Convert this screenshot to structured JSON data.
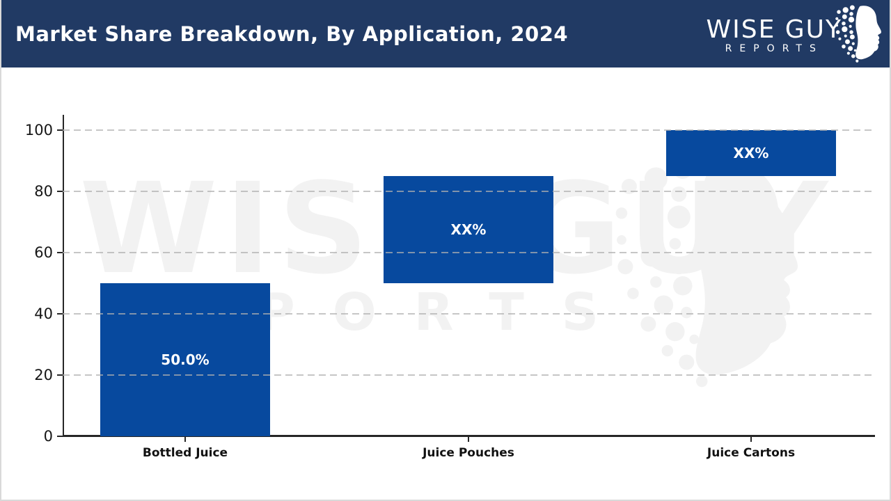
{
  "header": {
    "title": "Market Share Breakdown, By Application, 2024",
    "brand": {
      "name": "WISE GUY",
      "tagline": "REPORTS"
    }
  },
  "watermark": {
    "name": "WISE GUY",
    "tagline": "REPORTS"
  },
  "chart_data": {
    "type": "bar",
    "subtype": "floating-waterfall",
    "title": "Market Share Breakdown, By Application, 2024",
    "categories": [
      "Bottled Juice",
      "Juice Pouches",
      "Juice Cartons"
    ],
    "series": [
      {
        "name": "Market share",
        "segments": [
          {
            "category": "Bottled Juice",
            "start": 0,
            "end": 50,
            "label": "50.0%"
          },
          {
            "category": "Juice Pouches",
            "start": 50,
            "end": 85,
            "label": "XX%"
          },
          {
            "category": "Juice Cartons",
            "start": 85,
            "end": 100,
            "label": "XX%"
          }
        ]
      }
    ],
    "xlabel": "",
    "ylabel": "",
    "ylim": [
      0,
      100
    ],
    "yticks": [
      0,
      20,
      40,
      60,
      80,
      100
    ],
    "grid": {
      "horizontal": true,
      "style": "dashed",
      "over_bars": true
    },
    "legend": "none",
    "bar_color": "#07499e",
    "bar_label_color": "#ffffff"
  },
  "colors": {
    "header_bg": "#213a64",
    "bar": "#07499e",
    "axis": "#262626",
    "tick_text": "#161616",
    "gridline": "#b0b0b0",
    "watermark": "#f2f2f2",
    "frame_border": "#d9d9d9"
  }
}
